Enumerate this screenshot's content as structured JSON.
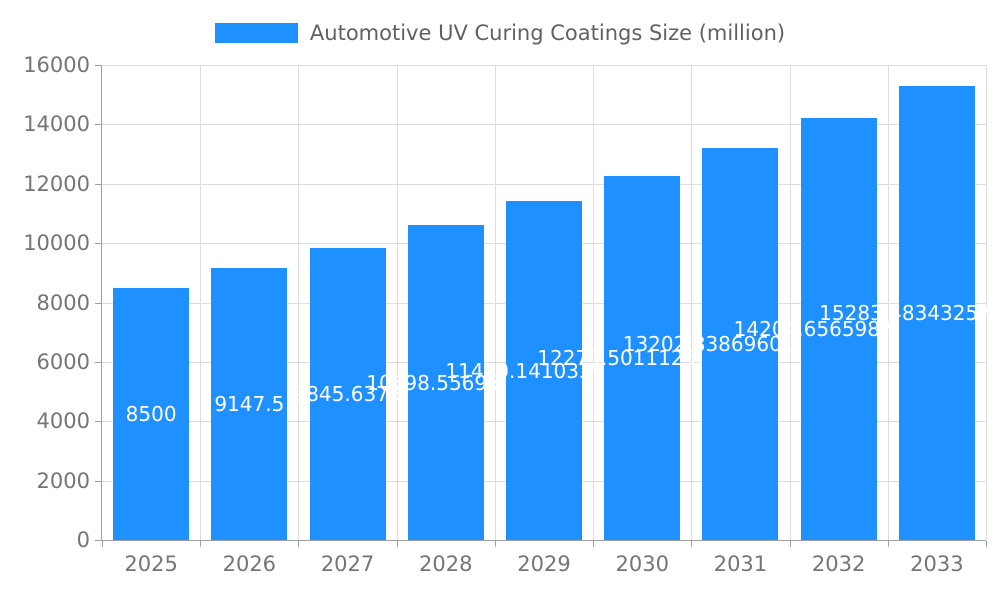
{
  "legend": {
    "label": "Automotive UV Curing Coatings Size (million)"
  },
  "chart_data": {
    "type": "bar",
    "title": "Automotive UV Curing Coatings Size (million)",
    "categories": [
      "2025",
      "2026",
      "2027",
      "2028",
      "2029",
      "2030",
      "2031",
      "2032",
      "2033"
    ],
    "values": [
      8500,
      9147.5,
      9845.6375,
      10598.5569575,
      11410.1410339625,
      12273.50111256875,
      13202.838696012277,
      14204.65659875734,
      15283.483432573468
    ],
    "bar_labels": [
      "8500",
      "9147.5",
      "9845.6375",
      "10598.5569575",
      "11410.1410339625",
      "12273.50111256875",
      "13202.8386960122774",
      "14204.65659875734",
      "15283.4834325734675"
    ],
    "xlabel": "",
    "ylabel": "",
    "ylim": [
      0,
      16000
    ],
    "yticks": [
      0,
      2000,
      4000,
      6000,
      8000,
      10000,
      12000,
      14000,
      16000
    ],
    "legend_position": "top",
    "grid": true,
    "bar_color": "#1e90ff",
    "bar_label_color": "#ffffff",
    "axis_text_color": "#757575",
    "legend_text_color": "#616161",
    "gridline_color": "#dddddd",
    "axis_line_color": "#9e9e9e"
  }
}
